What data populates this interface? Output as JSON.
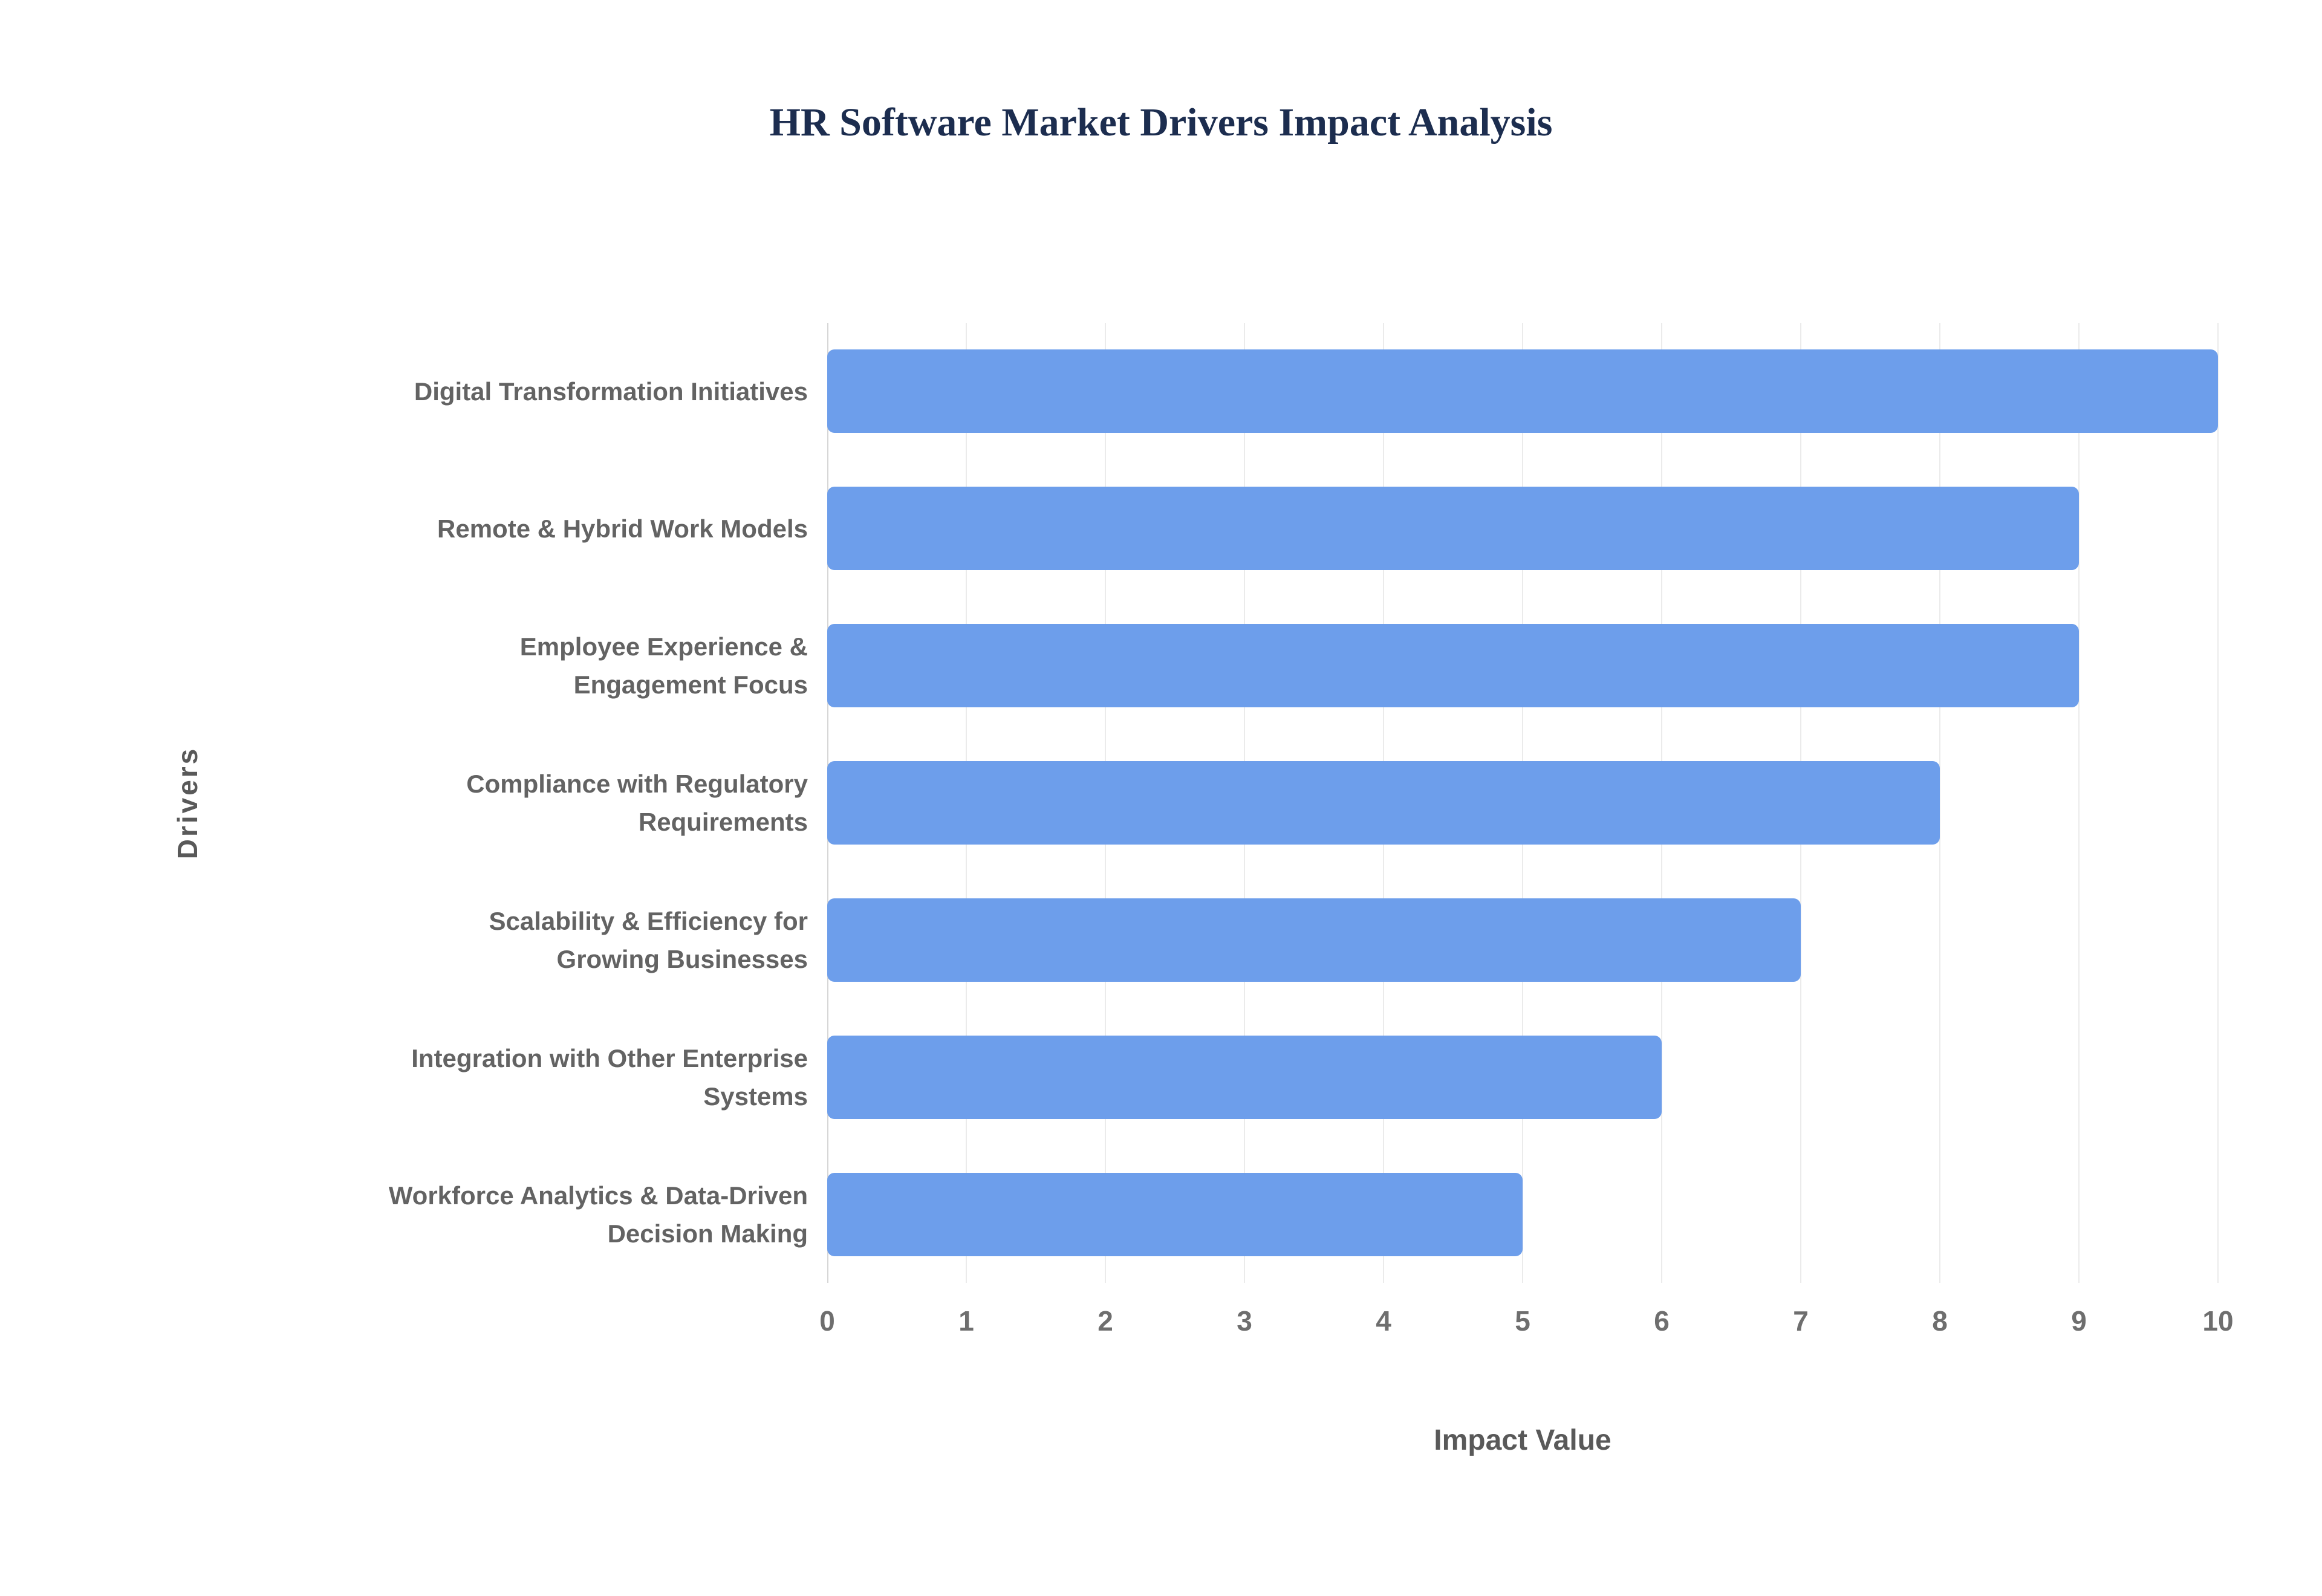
{
  "chart_data": {
    "type": "bar",
    "orientation": "horizontal",
    "title": "HR Software Market Drivers Impact Analysis",
    "xlabel": "Impact Value",
    "ylabel": "Drivers",
    "categories": [
      "Digital Transformation Initiatives",
      "Remote & Hybrid Work Models",
      "Employee Experience & Engagement Focus",
      "Compliance with Regulatory Requirements",
      "Scalability & Efficiency for Growing Businesses",
      "Integration with Other Enterprise Systems",
      "Workforce Analytics & Data-Driven Decision Making"
    ],
    "values": [
      10,
      9,
      9,
      8,
      7,
      6,
      5
    ],
    "xlim": [
      0,
      10
    ],
    "xticks": [
      0,
      1,
      2,
      3,
      4,
      5,
      6,
      7,
      8,
      9,
      10
    ],
    "grid": true,
    "legend": false,
    "bar_color": "#6d9eeb",
    "gridline_color": "#ebebeb",
    "axis_line_color": "#d6d6d6",
    "axis_text_color": "#6e6e6e",
    "label_text_color": "#636363",
    "title_color": "#1c2d4f"
  }
}
